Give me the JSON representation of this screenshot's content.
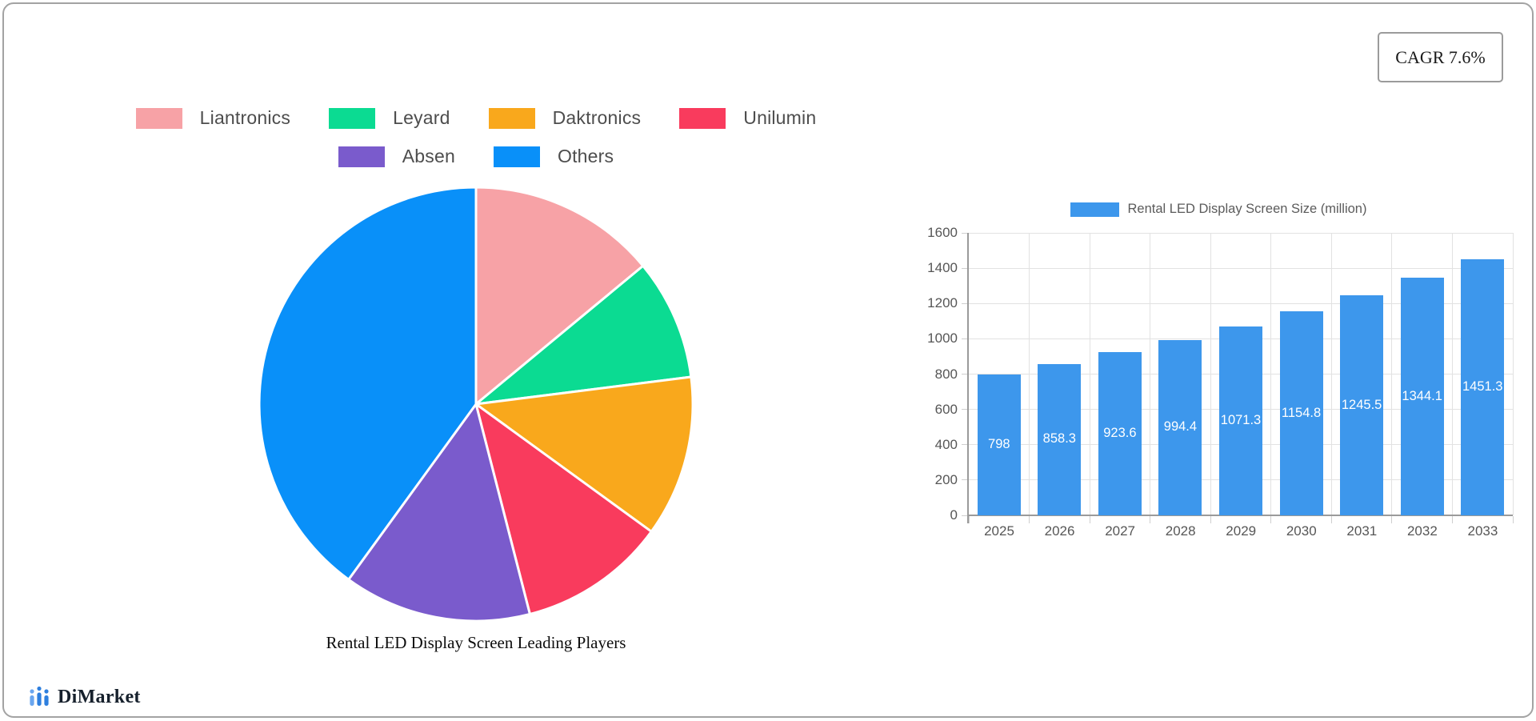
{
  "header": {
    "cagr_badge": "CAGR 7.6%"
  },
  "footer": {
    "brand": "DiMarket"
  },
  "chart_data": [
    {
      "type": "pie",
      "title": "Rental LED Display Screen Leading Players",
      "legend_position": "top",
      "labels": [
        "Liantronics",
        "Leyard",
        "Daktronics",
        "Unilumin",
        "Absen",
        "Others"
      ],
      "values": [
        14,
        9,
        12,
        11,
        14,
        40
      ],
      "colors": [
        "#F7A2A6",
        "#0BDB92",
        "#F9A81C",
        "#F93B5D",
        "#7A5BCC",
        "#0990F9"
      ],
      "legend_rows": [
        [
          0,
          1,
          2,
          3
        ],
        [
          4,
          5
        ]
      ]
    },
    {
      "type": "bar",
      "title": "Rental LED Display Screen Size (million)",
      "legend_position": "top",
      "categories": [
        "2025",
        "2026",
        "2027",
        "2028",
        "2029",
        "2030",
        "2031",
        "2032",
        "2033"
      ],
      "values": [
        798,
        858.3,
        923.6,
        994.4,
        1071.3,
        1154.8,
        1245.5,
        1344.1,
        1451.3
      ],
      "value_labels": [
        "798",
        "858.3",
        "923.6",
        "994.4",
        "1071.3",
        "1154.8",
        "1245.5",
        "1344.1",
        "1451.3"
      ],
      "ylim": [
        0,
        1600
      ],
      "y_ticks": [
        0,
        200,
        400,
        600,
        800,
        1000,
        1200,
        1400,
        1600
      ],
      "grid": true,
      "bar_color": "#3D97EC"
    }
  ]
}
